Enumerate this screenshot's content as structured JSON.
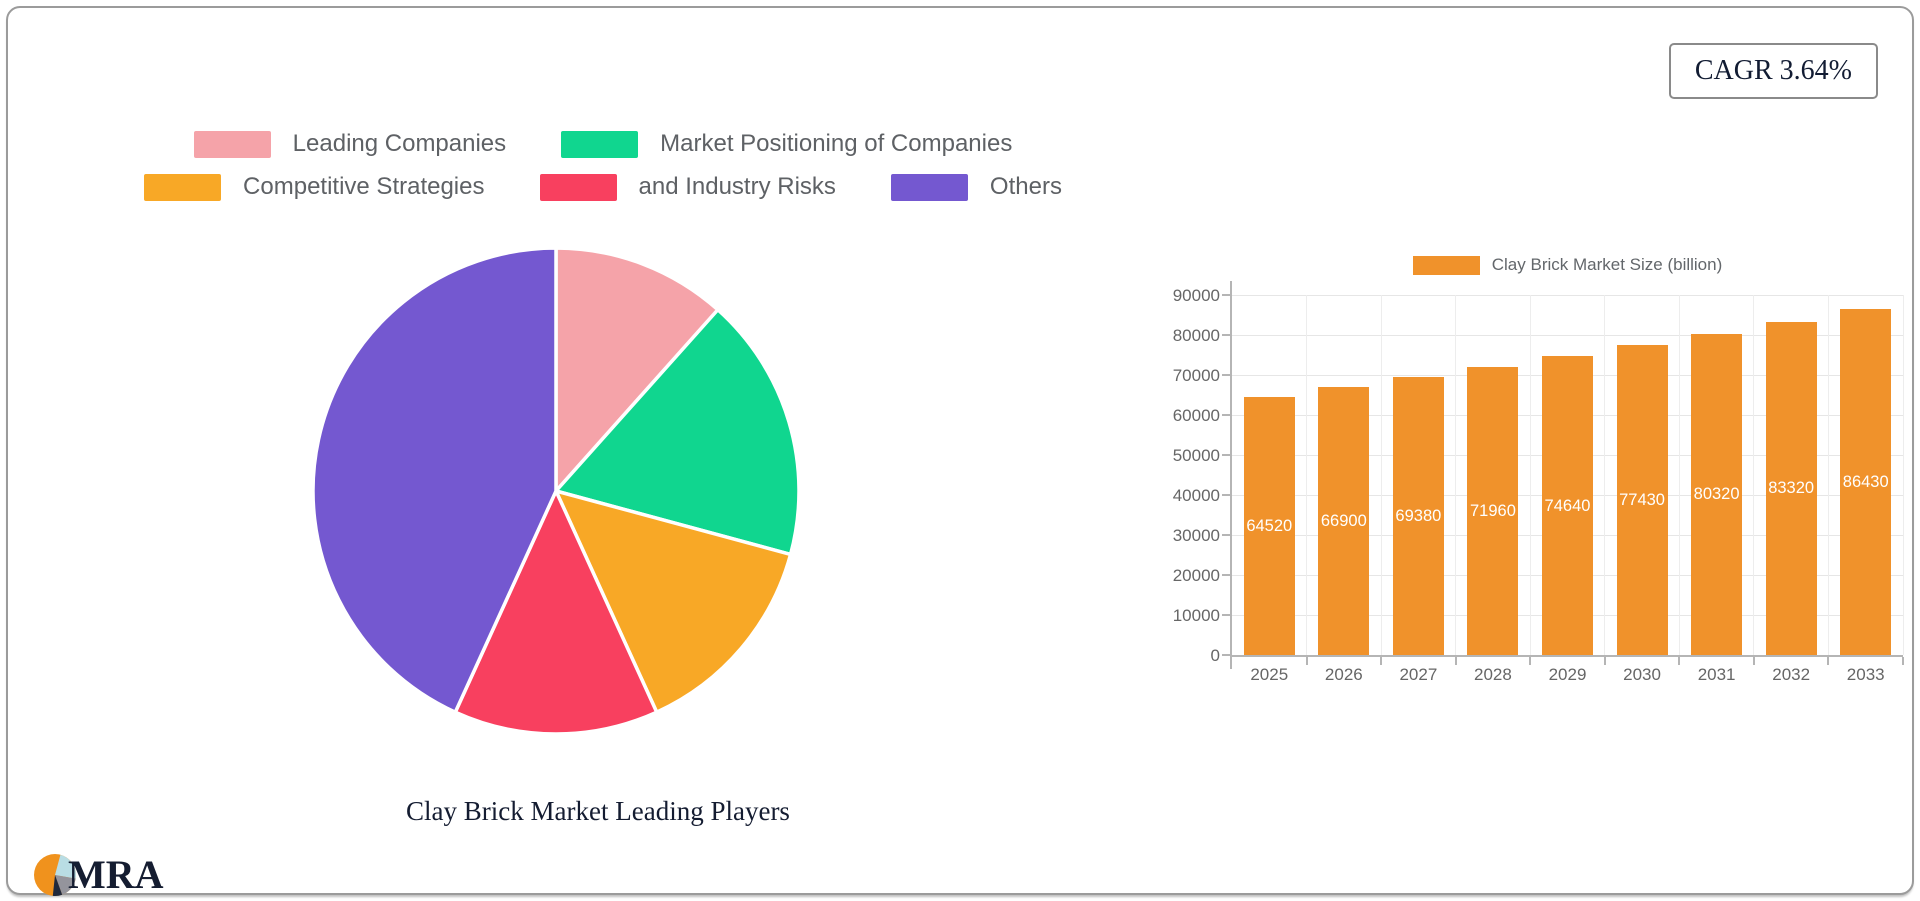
{
  "badge": {
    "text": "CAGR 3.64%"
  },
  "logo": {
    "text": "MRA",
    "colors": {
      "orange": "#f0921d",
      "blue": "#b9dde4",
      "gray": "#94949c",
      "navy": "#20293c"
    }
  },
  "chart_data": [
    {
      "type": "pie",
      "title": "Clay Brick Market Leading Players",
      "start_angle_deg": 0,
      "direction": "clockwise",
      "legend_position": "top",
      "slices": [
        {
          "label": "Leading Companies",
          "percent": 11.6,
          "color": "#f5a3a9"
        },
        {
          "label": "Market Positioning of Companies",
          "percent": 17.6,
          "color": "#10d68f"
        },
        {
          "label": "Competitive Strategies",
          "percent": 14.0,
          "color": "#f8a826"
        },
        {
          "label": "and Industry Risks",
          "percent": 13.6,
          "color": "#f8405f"
        },
        {
          "label": "Others",
          "percent": 43.2,
          "color": "#7458d0"
        }
      ],
      "legend_rows": [
        [
          0,
          1
        ],
        [
          2,
          3,
          4
        ]
      ]
    },
    {
      "type": "bar",
      "legend": "Clay Brick Market Size (billion)",
      "categories": [
        "2025",
        "2026",
        "2027",
        "2028",
        "2029",
        "2030",
        "2031",
        "2032",
        "2033"
      ],
      "values": [
        64520,
        66900,
        69380,
        71960,
        74640,
        77430,
        80320,
        83320,
        86430
      ],
      "bar_color": "#f0922b",
      "value_label_color": "#ffffff",
      "ylim": [
        0,
        90000
      ],
      "ytick_step": 10000,
      "grid": true,
      "legend_position": "top"
    }
  ]
}
